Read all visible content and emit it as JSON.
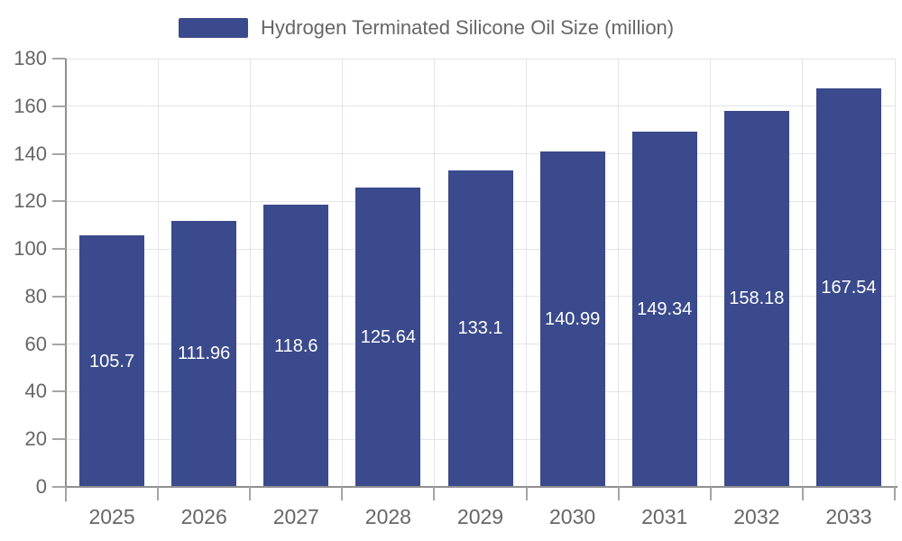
{
  "legend": {
    "label": "Hydrogen Terminated Silicone Oil Size (million)"
  },
  "colors": {
    "bar": "#3A4A8C",
    "grid_line": "#E3E3EA",
    "axis_line": "#8F8F8F",
    "tick_line": "#A5A5A9",
    "axis_text": "#666666",
    "value_text": "#FFFFFF",
    "background": "#FFFFFF"
  },
  "chart_data": {
    "type": "bar",
    "title": "Hydrogen Terminated Silicone Oil Size (million)",
    "categories": [
      "2025",
      "2026",
      "2027",
      "2028",
      "2029",
      "2030",
      "2031",
      "2032",
      "2033"
    ],
    "values": [
      105.7,
      111.96,
      118.6,
      125.64,
      133.1,
      140.99,
      149.34,
      158.18,
      167.54
    ],
    "value_labels": [
      "105.7",
      "111.96",
      "118.6",
      "125.64",
      "133.1",
      "140.99",
      "149.34",
      "158.18",
      "167.54"
    ],
    "series_name": "Hydrogen Terminated Silicone Oil Size (million)",
    "xlabel": "",
    "ylabel": "",
    "ylim": [
      0,
      180
    ],
    "ytick_step": 20,
    "ytick_labels": [
      "0",
      "20",
      "40",
      "60",
      "80",
      "100",
      "120",
      "140",
      "160",
      "180"
    ],
    "grid": true,
    "legend_position": "top",
    "value_label_position": "inside-center"
  }
}
